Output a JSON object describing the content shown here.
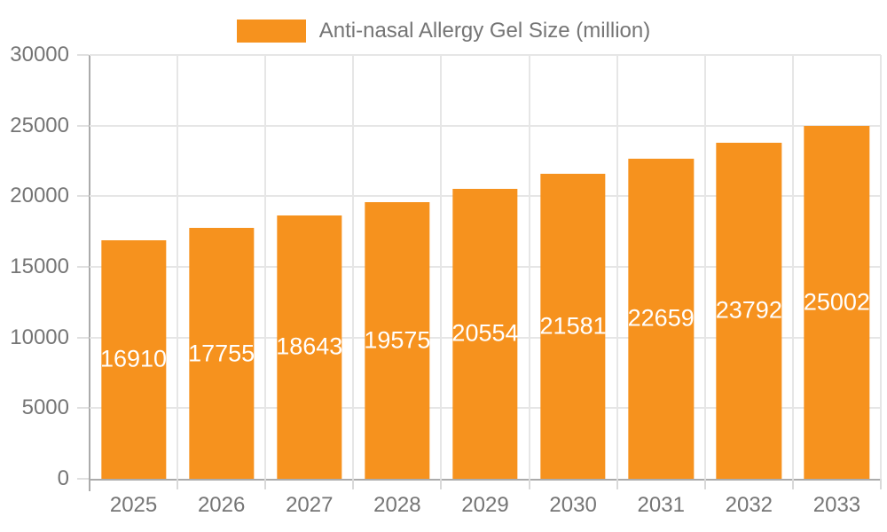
{
  "colors": {
    "bar": "#f6921e",
    "axis_text": "#757575",
    "value_text": "#ffffff",
    "gridline": "#e6e6e6",
    "axis_line": "#ababab",
    "background": "#ffffff"
  },
  "chart_data": {
    "type": "bar",
    "title": "",
    "legend_label": "Anti-nasal Allergy Gel Size (million)",
    "legend_position": "top-center",
    "categories": [
      "2025",
      "2026",
      "2027",
      "2028",
      "2029",
      "2030",
      "2031",
      "2032",
      "2033"
    ],
    "values": [
      16910,
      17755,
      18643,
      19575,
      20554,
      21581,
      22659,
      23792,
      25002
    ],
    "xlabel": "",
    "ylabel": "",
    "ylim": [
      0,
      30000
    ],
    "yticks": [
      0,
      5000,
      10000,
      15000,
      20000,
      25000,
      30000
    ],
    "grid": true,
    "value_labels": "inside-center-white"
  }
}
